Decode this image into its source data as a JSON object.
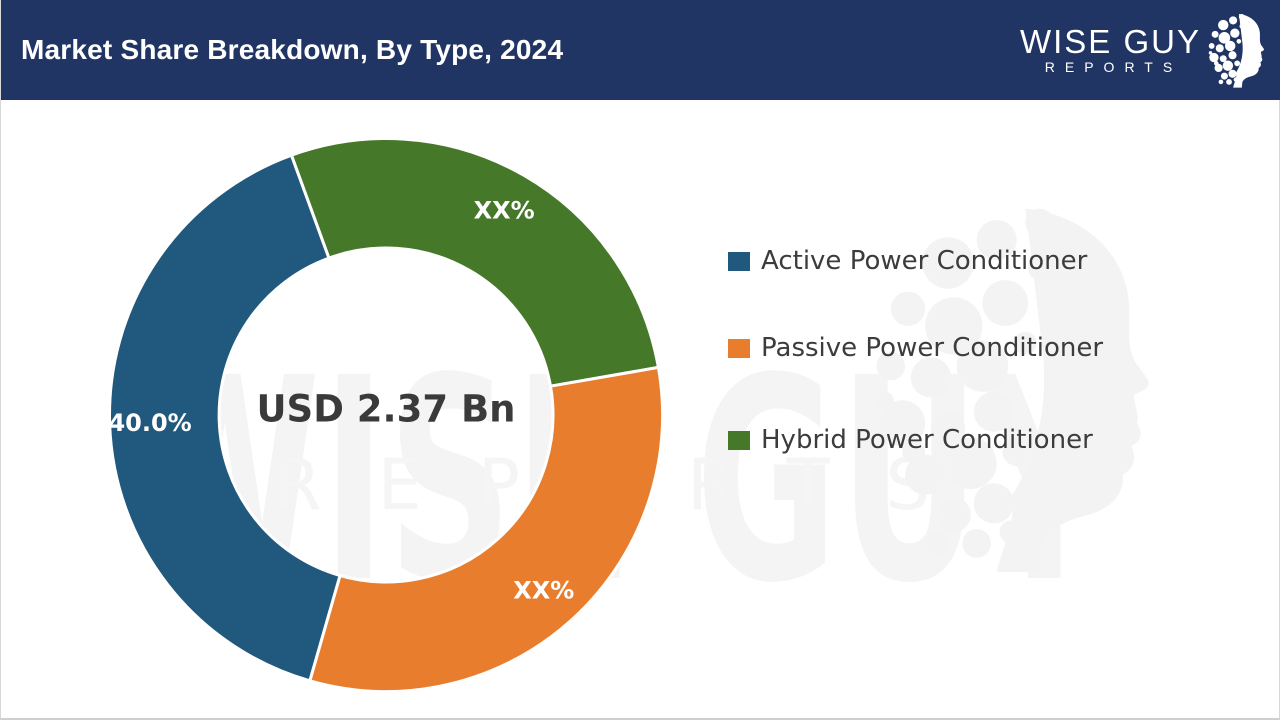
{
  "header": {
    "title": "Market Share Breakdown, By Type, 2024",
    "logo": {
      "line1": "WISE GUY",
      "line2": "REPORTS"
    }
  },
  "watermark": {
    "line1": "WISE GUY",
    "line2": "REPORTS"
  },
  "chart_data": {
    "type": "donut",
    "title": "Market Share Breakdown, By Type, 2024",
    "center_label": "USD 2.37 Bn",
    "start_angle_deg": 110,
    "direction": "clockwise",
    "inner_radius_ratio": 0.6,
    "segments": [
      {
        "name": "Hybrid Power Conditioner",
        "value_pct": 27.8,
        "display_label": "XX%",
        "color": "#46782A"
      },
      {
        "name": "Passive Power Conditioner",
        "value_pct": 32.2,
        "display_label": "XX%",
        "color": "#E87D2E"
      },
      {
        "name": "Active Power Conditioner",
        "value_pct": 40.0,
        "display_label": "40.0%",
        "color": "#21587D"
      }
    ],
    "legend": [
      {
        "label": "Active Power Conditioner",
        "color": "#21587D"
      },
      {
        "label": "Passive Power Conditioner",
        "color": "#E87D2E"
      },
      {
        "label": "Hybrid Power Conditioner",
        "color": "#46782A"
      }
    ],
    "legend_position": "right",
    "slice_label_color": "#FFFFFF"
  },
  "colors": {
    "header_bg": "#213564",
    "center_text": "#3A3A3A",
    "legend_text": "#3C3C3C",
    "watermark": "#F4F4F4"
  }
}
